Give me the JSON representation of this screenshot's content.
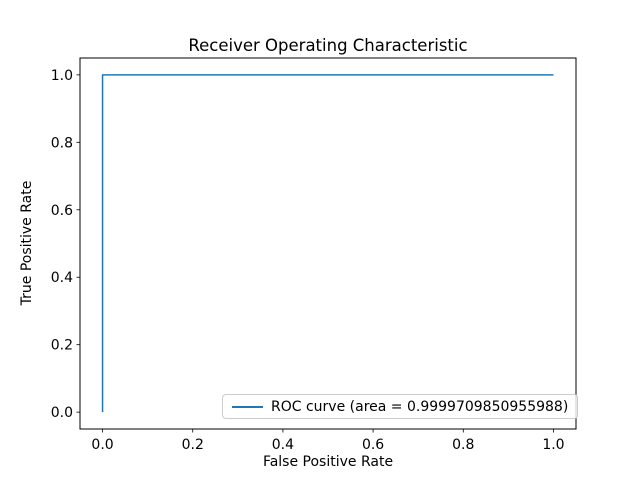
{
  "chart_data": {
    "type": "line",
    "title": "Receiver Operating Characteristic",
    "xlabel": "False Positive Rate",
    "ylabel": "True Positive Rate",
    "xlim": [
      -0.05,
      1.05
    ],
    "ylim": [
      -0.05,
      1.05
    ],
    "xticks": [
      0.0,
      0.2,
      0.4,
      0.6,
      0.8,
      1.0
    ],
    "yticks": [
      0.0,
      0.2,
      0.4,
      0.6,
      0.8,
      1.0
    ],
    "tick_label_format_decimals": 1,
    "grid": false,
    "background_color": "#ffffff",
    "spine_color": "#000000",
    "legend_position": "lower right",
    "roc_area_value": "0.9999709850955988",
    "series": [
      {
        "name": "ROC curve (area = 0.9999709850955988)",
        "color": "#1f77b4",
        "line_width": 1.5,
        "x": [
          0.0,
          0.0,
          1.0
        ],
        "y": [
          0.0,
          1.0,
          1.0
        ]
      }
    ]
  }
}
